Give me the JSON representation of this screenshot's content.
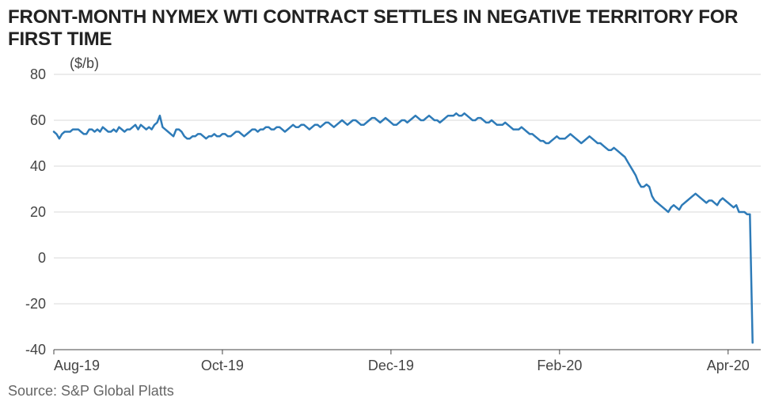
{
  "title": "FRONT-MONTH NYMEX WTI CONTRACT SETTLES IN NEGATIVE TERRITORY FOR FIRST TIME",
  "source": "Source: S&P Global Platts",
  "chart": {
    "type": "line",
    "y_axis_label": "($/b)",
    "ylim": [
      -40,
      80
    ],
    "ytick_step": 20,
    "yticklabels": [
      "-40",
      "-20",
      "0",
      "20",
      "40",
      "60",
      "80"
    ],
    "xlim": [
      0,
      260
    ],
    "xticks": [
      0,
      62,
      124,
      186,
      248
    ],
    "xticklabels": [
      "Aug-19",
      "Oct-19",
      "Dec-19",
      "Feb-20",
      "Apr-20"
    ],
    "line_color": "#2e7bb8",
    "line_width": 2.5,
    "grid_color": "#d9d9d9",
    "axis_color": "#444444",
    "background_color": "#ffffff",
    "text_color": "#444444",
    "label_fontsize": 18,
    "tick_fontsize": 18,
    "data": [
      55,
      54,
      52,
      54,
      55,
      55,
      55,
      56,
      56,
      56,
      55,
      54,
      54,
      56,
      56,
      55,
      56,
      55,
      57,
      56,
      55,
      55,
      56,
      55,
      57,
      56,
      55,
      56,
      56,
      57,
      58,
      56,
      58,
      57,
      56,
      57,
      56,
      58,
      59,
      62,
      57,
      56,
      55,
      54,
      53,
      56,
      56,
      55,
      53,
      52,
      52,
      53,
      53,
      54,
      54,
      53,
      52,
      53,
      53,
      54,
      53,
      53,
      54,
      54,
      53,
      53,
      54,
      55,
      55,
      54,
      53,
      54,
      55,
      56,
      56,
      55,
      56,
      56,
      57,
      57,
      56,
      56,
      57,
      57,
      56,
      55,
      56,
      57,
      58,
      57,
      57,
      58,
      58,
      57,
      56,
      57,
      58,
      58,
      57,
      58,
      59,
      59,
      58,
      57,
      58,
      59,
      60,
      59,
      58,
      59,
      60,
      60,
      59,
      58,
      58,
      59,
      60,
      61,
      61,
      60,
      59,
      60,
      61,
      60,
      59,
      58,
      58,
      59,
      60,
      60,
      59,
      60,
      61,
      62,
      61,
      60,
      60,
      61,
      62,
      61,
      60,
      60,
      59,
      60,
      61,
      62,
      62,
      62,
      63,
      62,
      62,
      63,
      62,
      61,
      60,
      60,
      61,
      61,
      60,
      59,
      59,
      60,
      59,
      58,
      58,
      58,
      59,
      58,
      57,
      56,
      56,
      56,
      57,
      56,
      55,
      54,
      54,
      53,
      52,
      51,
      51,
      50,
      50,
      51,
      52,
      53,
      52,
      52,
      52,
      53,
      54,
      53,
      52,
      51,
      50,
      51,
      52,
      53,
      52,
      51,
      50,
      50,
      49,
      48,
      47,
      47,
      48,
      47,
      46,
      45,
      44,
      42,
      40,
      38,
      36,
      33,
      31,
      31,
      32,
      31,
      27,
      25,
      24,
      23,
      22,
      21,
      20,
      22,
      23,
      22,
      21,
      23,
      24,
      25,
      26,
      27,
      28,
      27,
      26,
      25,
      24,
      25,
      25,
      24,
      23,
      25,
      26,
      25,
      24,
      23,
      22,
      23,
      20,
      20,
      20,
      19,
      19,
      -37
    ]
  }
}
